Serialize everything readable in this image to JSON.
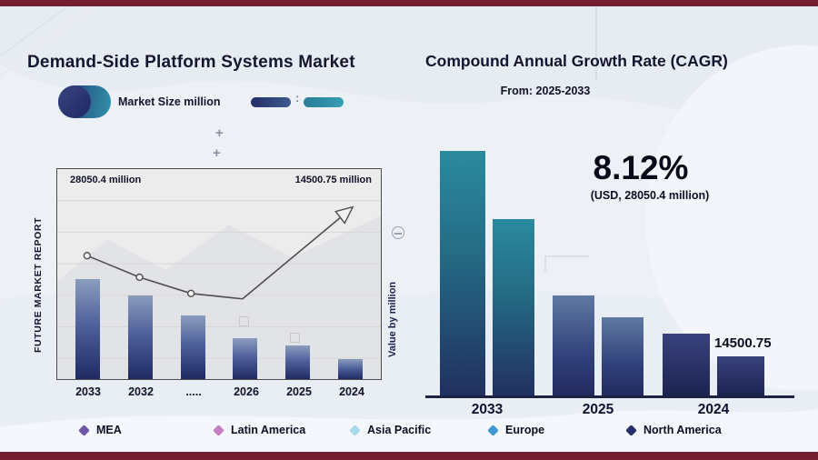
{
  "colors": {
    "border_maroon": "#731f2f",
    "background": "#edf1f6",
    "teal": "#2f93a8",
    "navy": "#1f2a63"
  },
  "decor": {
    "plus": "+",
    "separator": ":"
  },
  "left_panel": {
    "title": "Demand-Side Platform Systems Market",
    "legend_pill_label": "Market Size million",
    "sidebar_label": "FUTURE MARKET REPORT",
    "chart": {
      "top_left_value": "28050.4 million",
      "top_right_value": "14500.75 million"
    }
  },
  "right_panel": {
    "title": "Compound Annual Growth Rate (CAGR)",
    "subtitle": "From: 2025-2033",
    "cagr_value": "8.12%",
    "cagr_detail": "(USD, 28050.4 million)",
    "bar_label": "14500.75",
    "axis_label": "Value by million"
  },
  "legend": {
    "items": [
      {
        "label": "MEA",
        "color": "#6f55a8"
      },
      {
        "label": "Latin America",
        "color": "#c47fc0"
      },
      {
        "label": "Asia Pacific",
        "color": "#a9d9ea"
      },
      {
        "label": "Europe",
        "color": "#3e9ad6"
      },
      {
        "label": "North America",
        "color": "#272e6b"
      }
    ]
  },
  "chart_data": [
    {
      "type": "bar",
      "title": "Demand-Side Platform Systems Market — Market Size million",
      "categories": [
        "2033",
        "2032",
        ".....",
        "2026",
        "2025",
        "2024"
      ],
      "values": [
        28050.4,
        25280,
        21890,
        18040,
        16810,
        14500.75
      ],
      "annotations": [
        "28050.4 million",
        "14500.75 million"
      ],
      "overlay": "declining marker line from 2033 bending into an upward arrow toward top-right",
      "xlabel": "",
      "ylabel": "FUTURE MARKET REPORT",
      "legend_position": "none",
      "grid": true
    },
    {
      "type": "bar",
      "title": "Compound Annual Growth Rate (CAGR) From: 2025-2033",
      "categories": [
        "2033",
        "2025",
        "2024"
      ],
      "series": [
        {
          "name": "series-1",
          "values": [
            28050.4,
            18530,
            16000
          ]
        },
        {
          "name": "series-2",
          "values": [
            23530,
            17090,
            14500.75
          ]
        }
      ],
      "cagr": "8.12%",
      "cagr_basis": "(USD, 28050.4 million)",
      "annotations": [
        "14500.75"
      ],
      "xlabel": "",
      "ylabel": "Value by million",
      "legend_position": "none",
      "grid": false
    }
  ]
}
